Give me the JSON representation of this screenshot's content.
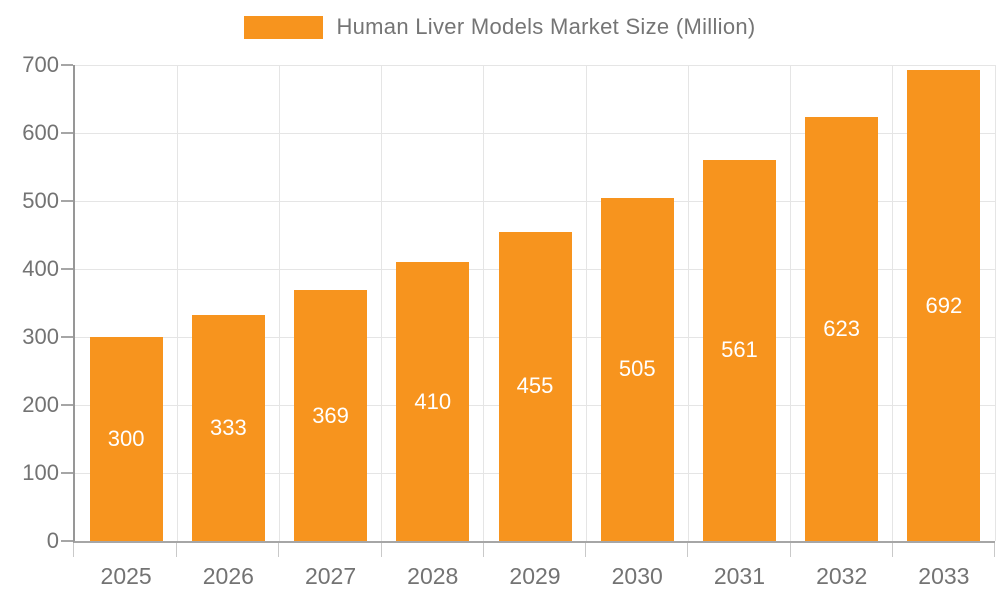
{
  "legend": {
    "label": "Human Liver Models Market Size (Million)"
  },
  "colors": {
    "bar": "#F7941E",
    "grid": "#E5E5E5",
    "axis": "#9B9B9B",
    "tick_text": "#737373",
    "legend_text": "#757575",
    "bar_label_text": "#FFFFFF"
  },
  "chart_data": {
    "type": "bar",
    "title": "Human Liver Models Market Size (Million)",
    "categories": [
      "2025",
      "2026",
      "2027",
      "2028",
      "2029",
      "2030",
      "2031",
      "2032",
      "2033"
    ],
    "values": [
      300,
      333,
      369,
      410,
      455,
      505,
      561,
      623,
      692
    ],
    "xlabel": "",
    "ylabel": "",
    "ylim": [
      0,
      700
    ],
    "ytick_interval": 100,
    "yticks": [
      0,
      100,
      200,
      300,
      400,
      500,
      600,
      700
    ],
    "grid": true,
    "legend_position": "top",
    "data_labels_position": "inside-middle"
  }
}
